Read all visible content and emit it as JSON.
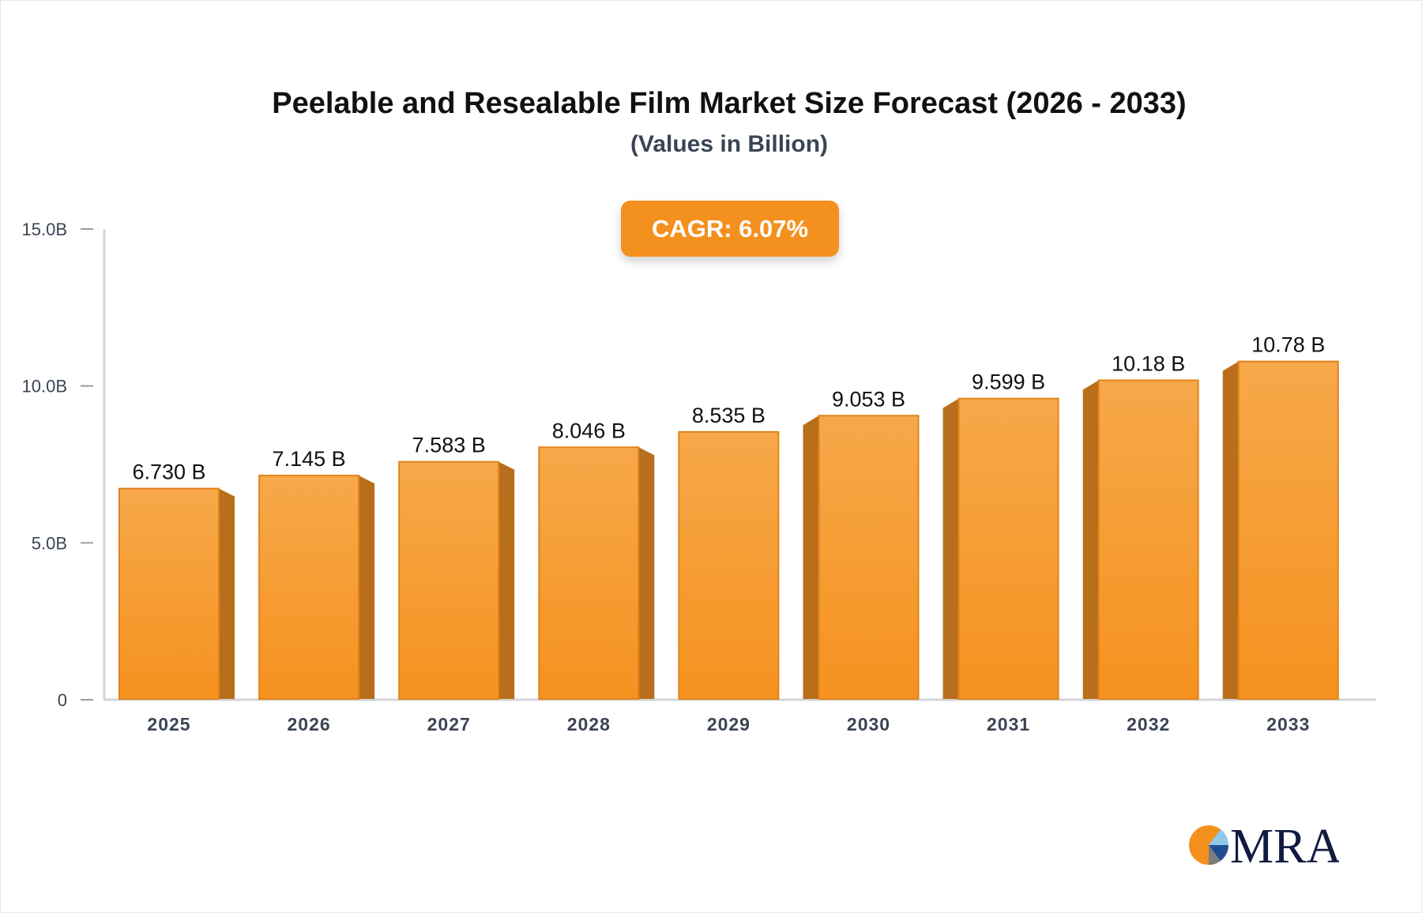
{
  "chart_data": {
    "type": "bar",
    "title": "Peelable and Resealable Film Market Size Forecast (2026 - 2033)",
    "subtitle": "(Values in Billion)",
    "annotation": "CAGR: 6.07%",
    "categories": [
      "2025",
      "2026",
      "2027",
      "2028",
      "2029",
      "2030",
      "2031",
      "2032",
      "2033"
    ],
    "values": [
      6.73,
      7.145,
      7.583,
      8.046,
      8.535,
      9.053,
      9.599,
      10.18,
      10.78
    ],
    "data_labels": [
      "6.730 B",
      "7.145 B",
      "7.583 B",
      "8.046 B",
      "8.535 B",
      "9.053 B",
      "9.599 B",
      "10.18 B",
      "10.78 B"
    ],
    "ylim": [
      0,
      15
    ],
    "yticks": [
      0,
      5,
      10,
      15
    ],
    "ytick_labels": [
      "0",
      "5.0B",
      "10.0B",
      "15.0B"
    ],
    "xlabel": "",
    "ylabel": "",
    "grid": false,
    "legend": "none",
    "colors": {
      "bar_top": "#f7a84a",
      "bar_bottom": "#f5921f",
      "bar_side": "#b86e1a",
      "accent": "#f4911e"
    }
  },
  "logo": {
    "text": "MRA"
  }
}
